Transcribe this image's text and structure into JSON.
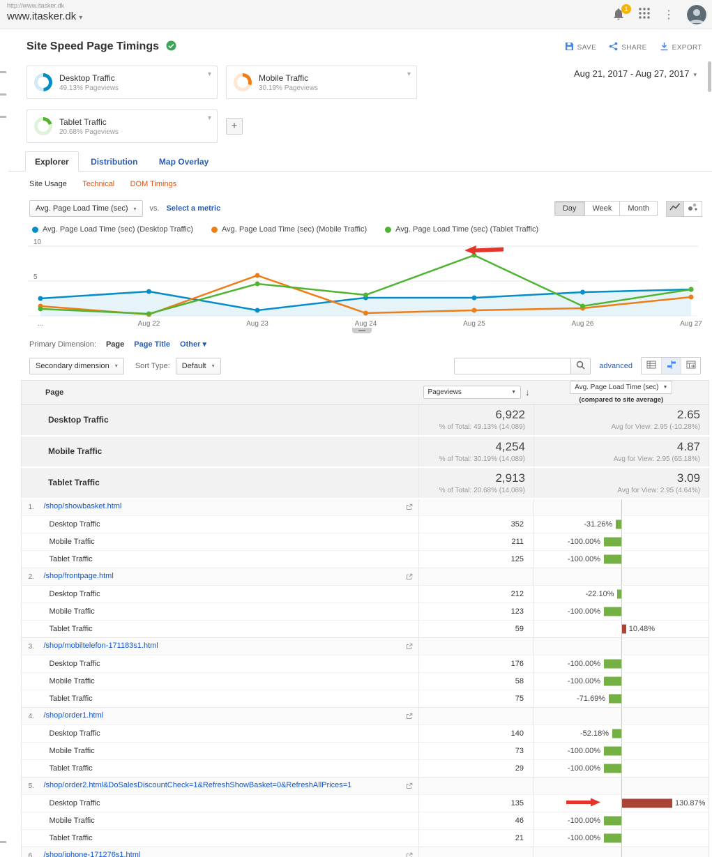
{
  "icons": {
    "dropdown": "▾",
    "select_caret": "▼",
    "sort_desc": "↓",
    "more_vertical": "⋮"
  },
  "topbar": {
    "url_text": "http://www.itasker.dk",
    "account_name": "www.itasker.dk",
    "notification_badge": "1"
  },
  "header": {
    "title": "Site Speed Page Timings",
    "save_label": "SAVE",
    "share_label": "SHARE",
    "export_label": "EXPORT",
    "date_range": "Aug 21, 2017 - Aug 27, 2017"
  },
  "segments": {
    "cards": [
      {
        "name": "Desktop Traffic",
        "detail": "49.13% Pageviews",
        "pct": 49.13,
        "color": "#058dc7"
      },
      {
        "name": "Mobile Traffic",
        "detail": "30.19% Pageviews",
        "pct": 30.19,
        "color": "#ed7e17"
      },
      {
        "name": "Tablet Traffic",
        "detail": "20.68% Pageviews",
        "pct": 20.68,
        "color": "#50b432"
      }
    ],
    "add_label": "+"
  },
  "tabs": {
    "items": [
      "Explorer",
      "Distribution",
      "Map Overlay"
    ],
    "active": 0
  },
  "subtabs": {
    "items": [
      "Site Usage",
      "Technical",
      "DOM Timings"
    ],
    "active": 0
  },
  "metric_bar": {
    "metric_selector": "Avg. Page Load Time (sec)",
    "vs_label": "vs.",
    "select_metric": "Select a metric",
    "granularity": [
      "Day",
      "Week",
      "Month"
    ]
  },
  "chart_data": {
    "type": "line",
    "x": [
      "...",
      "Aug 22",
      "Aug 23",
      "Aug 24",
      "Aug 25",
      "Aug 26",
      "Aug 27"
    ],
    "ylim": [
      0,
      10
    ],
    "yticks": [
      5,
      10
    ],
    "legend_position": "top",
    "grid": true,
    "series": [
      {
        "name": "Avg. Page Load Time (sec) (Desktop Traffic)",
        "color": "#058dc7",
        "fill": true,
        "values": [
          2.5,
          3.5,
          0.8,
          2.6,
          2.6,
          3.4,
          3.8
        ]
      },
      {
        "name": "Avg. Page Load Time (sec) (Mobile Traffic)",
        "color": "#ed7e17",
        "fill": false,
        "values": [
          1.4,
          0.2,
          5.8,
          0.4,
          0.8,
          1.1,
          2.7
        ]
      },
      {
        "name": "Avg. Page Load Time (sec) (Tablet Traffic)",
        "color": "#50b432",
        "fill": false,
        "values": [
          1.0,
          0.3,
          4.6,
          3.0,
          8.7,
          1.4,
          3.8
        ]
      }
    ]
  },
  "dimension_bar": {
    "label": "Primary Dimension:",
    "items": [
      "Page",
      "Page Title",
      "Other"
    ],
    "active": 0
  },
  "toolbar": {
    "secondary_dimension": "Secondary dimension",
    "sort_type_label": "Sort Type:",
    "sort_type_value": "Default",
    "search_value": "",
    "advanced_label": "advanced"
  },
  "table": {
    "columns": {
      "page": "Page",
      "pageviews": "Pageviews",
      "metric": "Avg. Page Load Time (sec)",
      "metric_note": "(compared to site average)"
    },
    "summary": [
      {
        "label": "Desktop Traffic",
        "pageviews": "6,922",
        "pageviews_note": "% of Total: 49.13% (14,089)",
        "metric": "2.65",
        "metric_note": "Avg for View: 2.95 (-10.28%)"
      },
      {
        "label": "Mobile Traffic",
        "pageviews": "4,254",
        "pageviews_note": "% of Total: 30.19% (14,089)",
        "metric": "4.87",
        "metric_note": "Avg for View: 2.95 (65.18%)"
      },
      {
        "label": "Tablet Traffic",
        "pageviews": "2,913",
        "pageviews_note": "% of Total: 20.68% (14,089)",
        "metric": "3.09",
        "metric_note": "Avg for View: 2.95 (4.64%)"
      }
    ],
    "rows": [
      {
        "index": "1.",
        "page": "/shop/showbasket.html",
        "segments": [
          {
            "label": "Desktop Traffic",
            "pageviews": "352",
            "delta": -31.26,
            "delta_label": "-31.26%"
          },
          {
            "label": "Mobile Traffic",
            "pageviews": "211",
            "delta": -100.0,
            "delta_label": "-100.00%"
          },
          {
            "label": "Tablet Traffic",
            "pageviews": "125",
            "delta": -100.0,
            "delta_label": "-100.00%"
          }
        ]
      },
      {
        "index": "2.",
        "page": "/shop/frontpage.html",
        "segments": [
          {
            "label": "Desktop Traffic",
            "pageviews": "212",
            "delta": -22.1,
            "delta_label": "-22.10%"
          },
          {
            "label": "Mobile Traffic",
            "pageviews": "123",
            "delta": -100.0,
            "delta_label": "-100.00%"
          },
          {
            "label": "Tablet Traffic",
            "pageviews": "59",
            "delta": 10.48,
            "delta_label": "10.48%"
          }
        ]
      },
      {
        "index": "3.",
        "page": "/shop/mobiltelefon-171183s1.html",
        "segments": [
          {
            "label": "Desktop Traffic",
            "pageviews": "176",
            "delta": -100.0,
            "delta_label": "-100.00%"
          },
          {
            "label": "Mobile Traffic",
            "pageviews": "58",
            "delta": -100.0,
            "delta_label": "-100.00%"
          },
          {
            "label": "Tablet Traffic",
            "pageviews": "75",
            "delta": -71.69,
            "delta_label": "-71.69%"
          }
        ]
      },
      {
        "index": "4.",
        "page": "/shop/order1.html",
        "segments": [
          {
            "label": "Desktop Traffic",
            "pageviews": "140",
            "delta": -52.18,
            "delta_label": "-52.18%"
          },
          {
            "label": "Mobile Traffic",
            "pageviews": "73",
            "delta": -100.0,
            "delta_label": "-100.00%"
          },
          {
            "label": "Tablet Traffic",
            "pageviews": "29",
            "delta": -100.0,
            "delta_label": "-100.00%"
          }
        ]
      },
      {
        "index": "5.",
        "page": "/shop/order2.html&DoSalesDiscountCheck=1&RefreshShowBasket=0&RefreshAllPrices=1",
        "segments": [
          {
            "label": "Desktop Traffic",
            "pageviews": "135",
            "delta": 130.87,
            "delta_label": "130.87%",
            "arrow": true
          },
          {
            "label": "Mobile Traffic",
            "pageviews": "46",
            "delta": -100.0,
            "delta_label": "-100.00%"
          },
          {
            "label": "Tablet Traffic",
            "pageviews": "21",
            "delta": -100.0,
            "delta_label": "-100.00%"
          }
        ]
      },
      {
        "index": "6.",
        "page": "/shop/iphone-171276s1.html",
        "segments": []
      }
    ]
  },
  "colors": {
    "negative_bar": "#74b044",
    "positive_bar": "#aa4436",
    "annotation_arrow": "#e8332a",
    "link": "#1155cc"
  }
}
